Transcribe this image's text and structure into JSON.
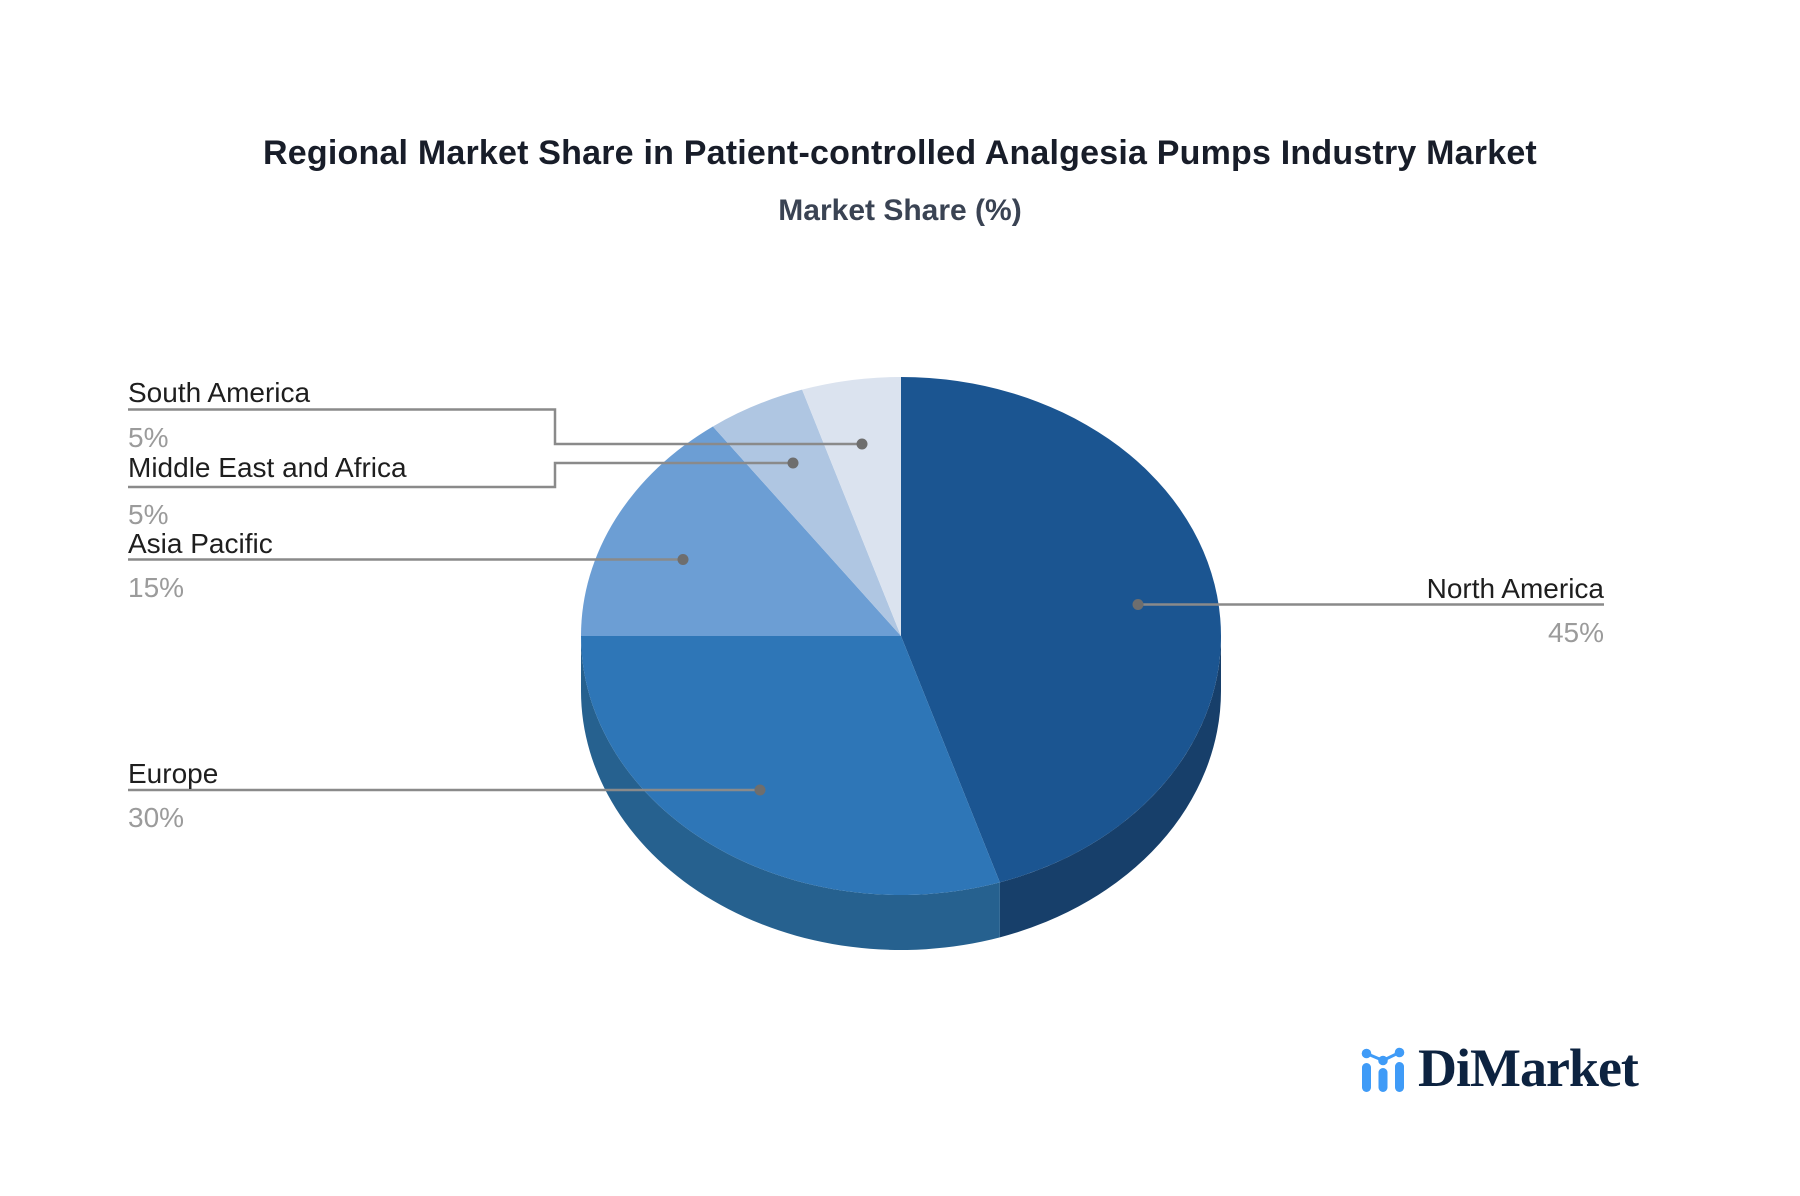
{
  "header": {
    "title": "Regional Market Share in Patient-controlled Analgesia Pumps Industry Market",
    "subtitle": "Market Share (%)"
  },
  "chart_data": {
    "type": "pie",
    "title": "Regional Market Share in Patient-controlled Analgesia Pumps Industry Market",
    "subtitle": "Market Share (%)",
    "unit": "%",
    "style": "3d-pie",
    "start_angle": "top",
    "direction": "clockwise",
    "legend_position": "callout-labels",
    "segments": [
      {
        "label": "North America",
        "value": 45,
        "display": "45%",
        "color": "#1B5591",
        "side_color": "#173F6A"
      },
      {
        "label": "Europe",
        "value": 30,
        "display": "30%",
        "color": "#2E76B7",
        "side_color": "#26618F"
      },
      {
        "label": "Asia Pacific",
        "value": 15,
        "display": "15%",
        "color": "#6C9ED4"
      },
      {
        "label": "Middle East and Africa",
        "value": 5,
        "display": "5%",
        "color": "#AFC6E2"
      },
      {
        "label": "South America",
        "value": 5,
        "display": "5%",
        "color": "#DBE3EF"
      }
    ],
    "leader_line_color": "#8A8A8A",
    "dot_color": "#6E6E6E",
    "label_color": "#1E1E1E",
    "value_color": "#9B9B9B"
  },
  "logo": {
    "text": "DiMarket",
    "text_color": "#0D2340",
    "icon": "bar-chart-trend-icon",
    "icon_color": "#3F9BF7"
  }
}
